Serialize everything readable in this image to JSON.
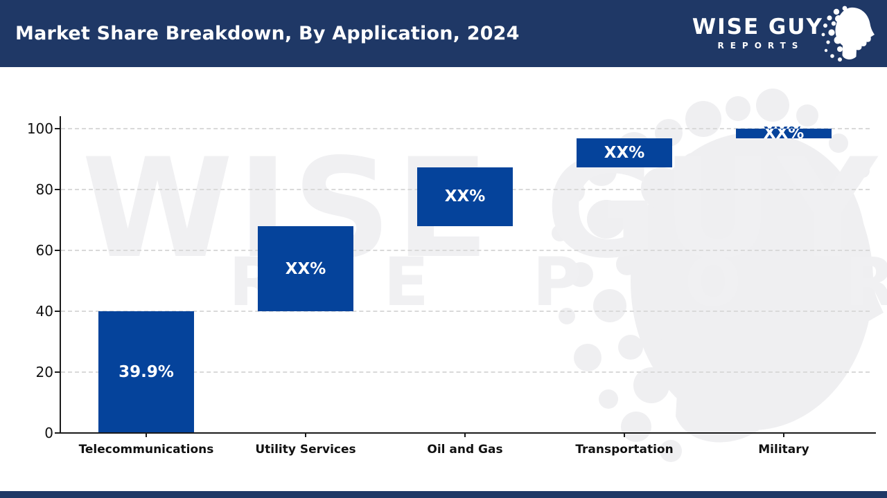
{
  "header": {
    "title": "Market Share Breakdown, By Application, 2024",
    "logo": {
      "line1": "WISE GUY",
      "line2": "REPORTS"
    }
  },
  "watermark": {
    "line1": "WISE GUY",
    "line2": "R E P O R T S"
  },
  "colors": {
    "header_bg": "#1f3866",
    "bar": "#05439b",
    "axis": "#1a1a1a",
    "grid": "#d9d9d9",
    "watermark": "#f0f0f2",
    "label_on_bar": "#ffffff",
    "text": "#111111"
  },
  "chart_data": {
    "type": "bar",
    "subtype": "waterfall",
    "title": "Market Share Breakdown, By Application, 2024",
    "categories": [
      "Telecommunications",
      "Utility Services",
      "Oil and Gas",
      "Transportation",
      "Military"
    ],
    "bars": [
      {
        "category": "Telecommunications",
        "start": 0,
        "end": 39.9,
        "value": 39.9,
        "label": "39.9%"
      },
      {
        "category": "Utility Services",
        "start": 39.9,
        "end": 68.0,
        "value": 28.1,
        "label": "XX%"
      },
      {
        "category": "Oil and Gas",
        "start": 68.0,
        "end": 87.3,
        "value": 19.3,
        "label": "XX%"
      },
      {
        "category": "Transportation",
        "start": 87.3,
        "end": 96.8,
        "value": 9.5,
        "label": "XX%"
      },
      {
        "category": "Military",
        "start": 96.8,
        "end": 100.0,
        "value": 3.2,
        "label": "XX%"
      }
    ],
    "xlabel": "",
    "ylabel": "",
    "ylim": [
      0,
      100
    ],
    "yticks": [
      0,
      20,
      40,
      60,
      80,
      100
    ],
    "grid": "horizontal-dashed",
    "legend": "none",
    "bar_color": "#05439b"
  }
}
